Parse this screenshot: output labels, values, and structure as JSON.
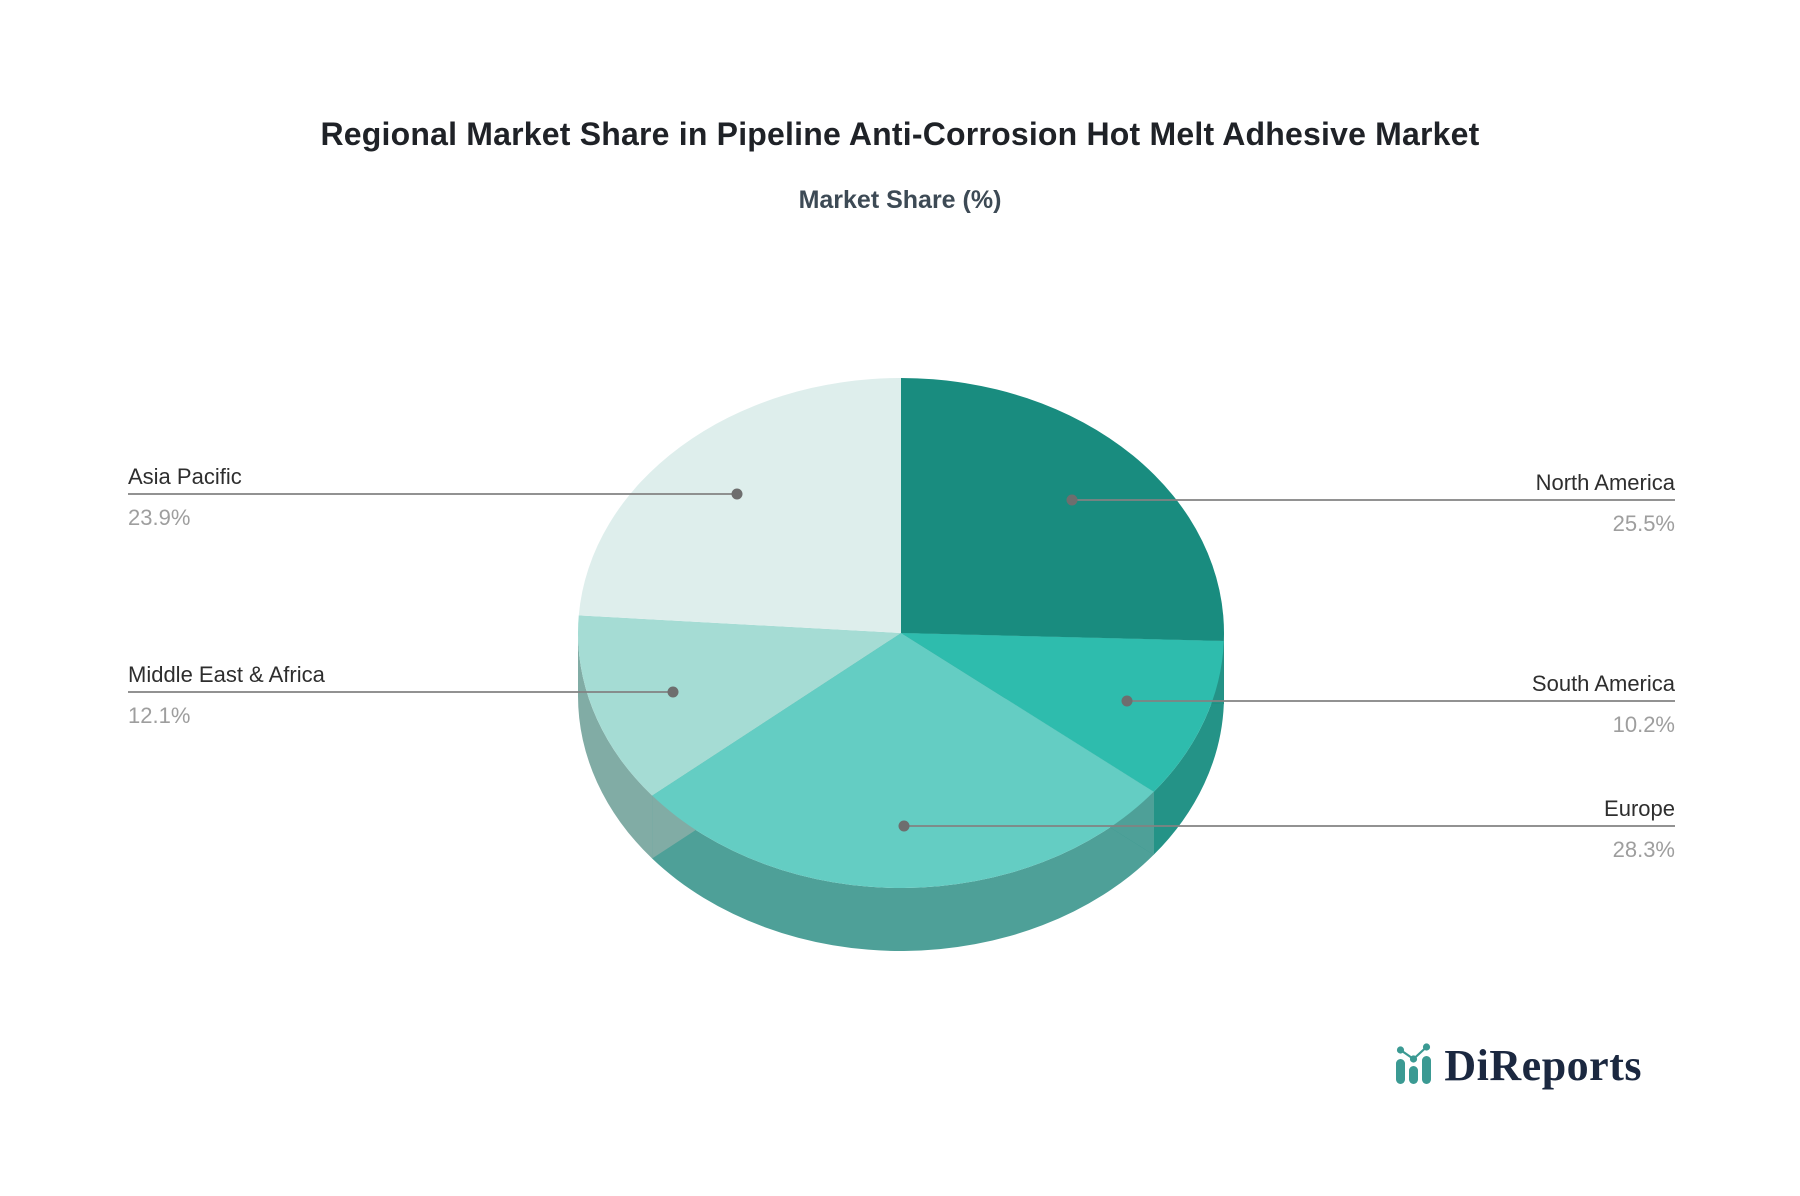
{
  "page": {
    "title": "Regional Market Share in Pipeline Anti-Corrosion Hot Melt Adhesive Market",
    "subtitle": "Market Share (%)"
  },
  "logo": {
    "text": "DiReports",
    "icon": "mini-bar-chart-icon"
  },
  "colors": {
    "background": "#ffffff",
    "title_text": "#1f2227",
    "subtitle_text": "#3d4a55",
    "label_text": "#2e2e2e",
    "percent_text": "#9e9e9e",
    "leader_line": "#828282",
    "leader_dot": "#6e6e6e",
    "logo_text": "#1b2840",
    "logo_accent": "#3b9a93"
  },
  "chart_data": {
    "type": "pie",
    "style": "3d",
    "title": "Regional Market Share in Pipeline Anti-Corrosion Hot Melt Adhesive Market",
    "subtitle": "Market Share (%)",
    "unit": "%",
    "start_angle_deg": 0,
    "direction": "clockwise",
    "legend_position": "none",
    "series": [
      {
        "label": "North America",
        "value": 25.5,
        "display": "25.5%",
        "color": "#198c7f",
        "label_side": "right"
      },
      {
        "label": "South America",
        "value": 10.2,
        "display": "10.2%",
        "color": "#2ebcad",
        "label_side": "right"
      },
      {
        "label": "Europe",
        "value": 28.3,
        "display": "28.3%",
        "color": "#64cdc3",
        "label_side": "right"
      },
      {
        "label": "Middle East & Africa",
        "value": 12.1,
        "display": "12.1%",
        "color": "#a5dcd4",
        "label_side": "left"
      },
      {
        "label": "Asia Pacific",
        "value": 23.9,
        "display": "23.9%",
        "color": "#deeeec",
        "label_side": "left"
      }
    ]
  }
}
